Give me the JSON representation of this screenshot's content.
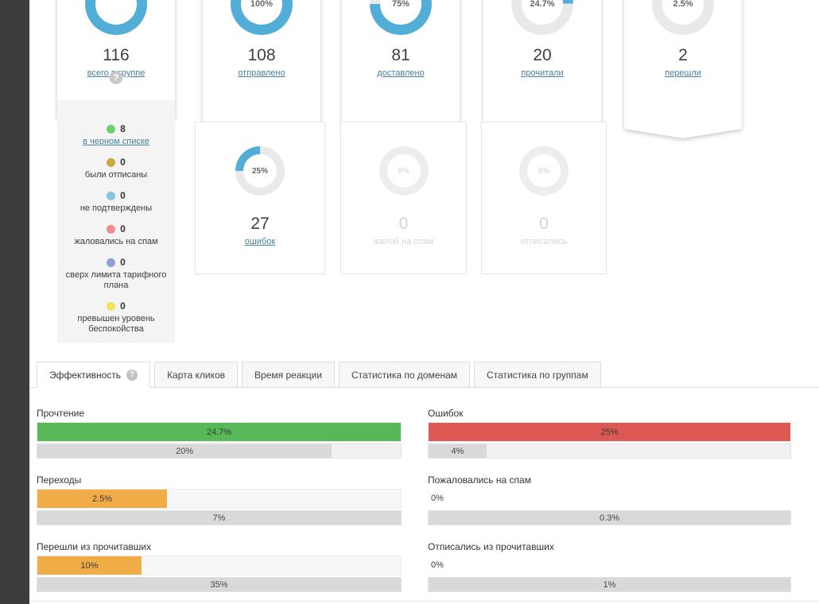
{
  "colors": {
    "donut_blue": "#52aed6",
    "donut_ring": "#e9e9e9",
    "donut_ring_disabled": "#ededed",
    "bar_green": "#57b857",
    "bar_orange": "#f0ac47",
    "bar_red": "#dc5852",
    "link": "#44819f"
  },
  "icons": {
    "help": "?"
  },
  "stat_cards": [
    {
      "percent_label": "",
      "percent_num": 100,
      "value": "116",
      "label": "всего в группе"
    },
    {
      "percent_label": "100%",
      "percent_num": 100,
      "value": "108",
      "label": "отправлено"
    },
    {
      "percent_label": "75%",
      "percent_num": 75,
      "value": "81",
      "label": "доставлено"
    },
    {
      "percent_label": "24.7%",
      "percent_num": 24.7,
      "value": "20",
      "label": "прочитали"
    },
    {
      "percent_label": "2.5%",
      "percent_num": 2.5,
      "value": "2",
      "label": "перешли"
    }
  ],
  "secondary_cards": [
    {
      "percent_label": "25%",
      "percent_num": 25,
      "value": "27",
      "label": "ошибок",
      "disabled": false
    },
    {
      "percent_label": "0%",
      "percent_num": 0,
      "value": "0",
      "label": "жалоб на спам",
      "disabled": true
    },
    {
      "percent_label": "0%",
      "percent_num": 0,
      "value": "0",
      "label": "отписались",
      "disabled": true
    }
  ],
  "legend": {
    "items": [
      {
        "color": "#6fcf6f",
        "value": "8",
        "label": "в черном списке",
        "link": true
      },
      {
        "color": "#c9a942",
        "value": "0",
        "label": "были отписаны",
        "link": false
      },
      {
        "color": "#86c5e8",
        "value": "0",
        "label": "не подтверждены",
        "link": false
      },
      {
        "color": "#f28c8c",
        "value": "0",
        "label": "жаловались на спам",
        "link": false
      },
      {
        "color": "#8d9fd8",
        "value": "0",
        "label": "сверх лимита тарифного плана",
        "link": false
      },
      {
        "color": "#f5e356",
        "value": "0",
        "label": "превышен уровень беспокойства",
        "link": false
      }
    ]
  },
  "tabs": [
    {
      "label": "Эффективность",
      "active": true,
      "help": true
    },
    {
      "label": "Карта кликов",
      "active": false,
      "help": false
    },
    {
      "label": "Время реакции",
      "active": false,
      "help": false
    },
    {
      "label": "Статистика по доменам",
      "active": false,
      "help": false
    },
    {
      "label": "Статистика по группам",
      "active": false,
      "help": false
    }
  ],
  "metrics": {
    "left": [
      {
        "title": "Прочтение",
        "primary": {
          "value": "24.7%",
          "pct": 100,
          "color": "green"
        },
        "secondary": {
          "value": "20%",
          "pct": 81
        }
      },
      {
        "title": "Переходы",
        "primary": {
          "value": "2.5%",
          "pct": 35.7,
          "color": "orange"
        },
        "secondary": {
          "value": "7%",
          "pct": 100
        }
      },
      {
        "title": "Перешли из прочитавших",
        "primary": {
          "value": "10%",
          "pct": 28.6,
          "color": "orange"
        },
        "secondary": {
          "value": "35%",
          "pct": 100
        }
      }
    ],
    "right": [
      {
        "title": "Ошибок",
        "primary": {
          "value": "25%",
          "pct": 100,
          "color": "red"
        },
        "secondary": {
          "value": "4%",
          "pct": 16
        }
      },
      {
        "title": "Пожаловались на спам",
        "primary": {
          "value": "0%",
          "pct": 0,
          "color": "none"
        },
        "secondary": {
          "value": "0.3%",
          "pct": 100
        }
      },
      {
        "title": "Отписались из прочитавших",
        "primary": {
          "value": "0%",
          "pct": 0,
          "color": "none"
        },
        "secondary": {
          "value": "1%",
          "pct": 100
        }
      }
    ]
  }
}
